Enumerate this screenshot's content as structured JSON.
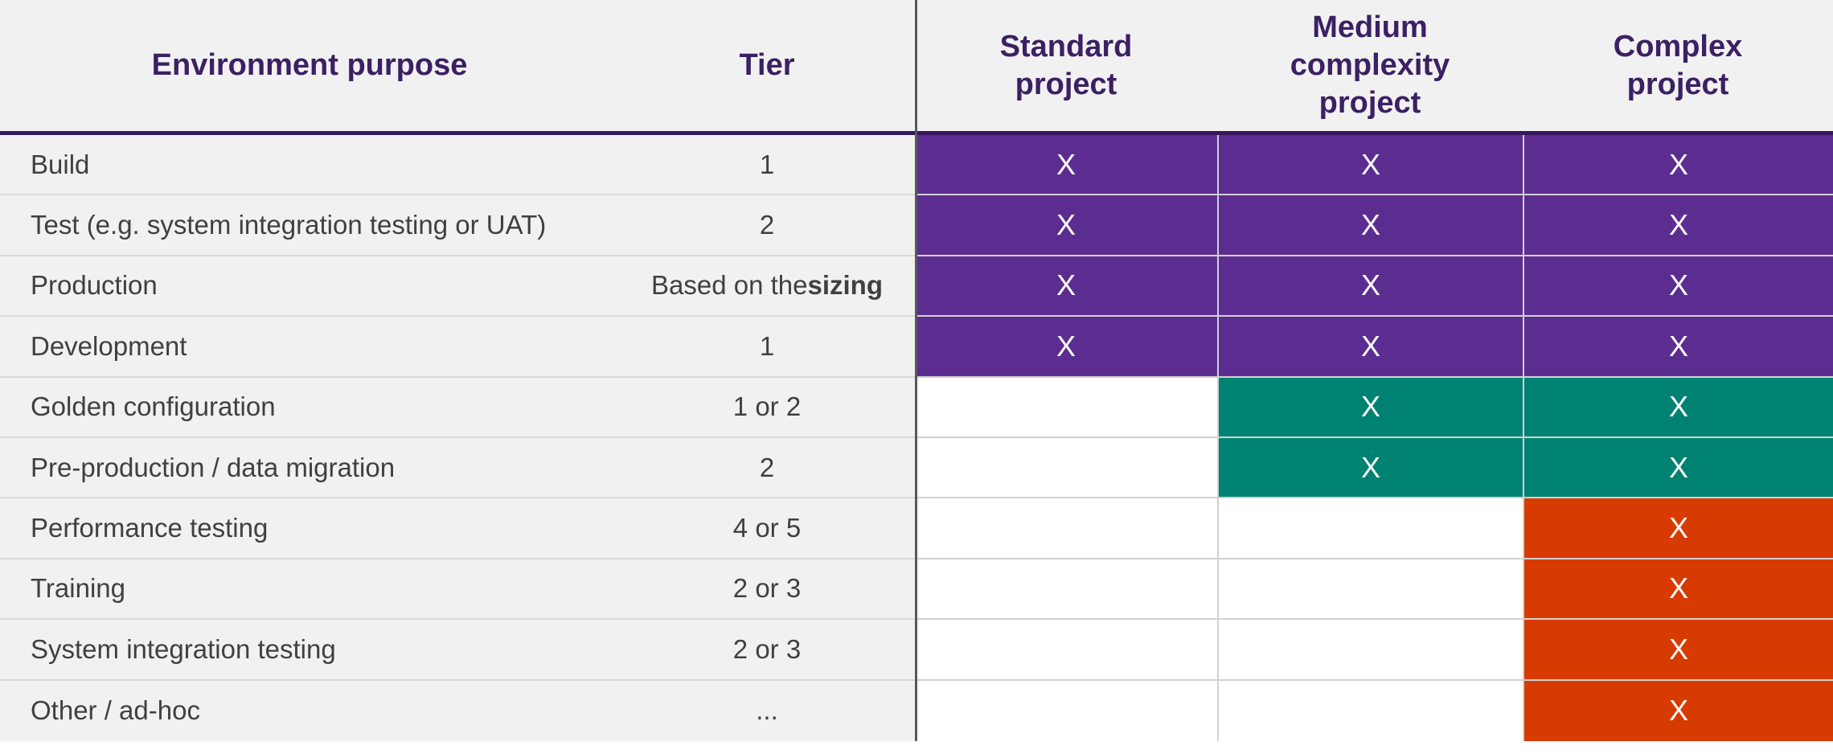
{
  "table": {
    "mark": "X",
    "columns": [
      {
        "id": "purpose",
        "label_lines": [
          "Environment purpose"
        ]
      },
      {
        "id": "tier",
        "label_lines": [
          "Tier"
        ]
      },
      {
        "id": "standard",
        "label_lines": [
          "Standard",
          "project"
        ]
      },
      {
        "id": "medium",
        "label_lines": [
          "Medium",
          "complexity",
          "project"
        ]
      },
      {
        "id": "complex",
        "label_lines": [
          "Complex",
          "project"
        ]
      }
    ],
    "rows": [
      {
        "purpose": "Build",
        "tier": "1",
        "tier_bold": "",
        "cells": [
          "purple",
          "purple",
          "purple"
        ]
      },
      {
        "purpose": "Test (e.g. system integration testing or UAT)",
        "tier": "2",
        "tier_bold": "",
        "cells": [
          "purple",
          "purple",
          "purple"
        ]
      },
      {
        "purpose": "Production",
        "tier": "Based on the ",
        "tier_bold": "sizing",
        "cells": [
          "purple",
          "purple",
          "purple"
        ]
      },
      {
        "purpose": "Development",
        "tier": "1",
        "tier_bold": "",
        "cells": [
          "purple",
          "purple",
          "purple"
        ]
      },
      {
        "purpose": "Golden configuration",
        "tier": "1 or 2",
        "tier_bold": "",
        "cells": [
          "none",
          "teal",
          "teal"
        ]
      },
      {
        "purpose": "Pre-production / data migration",
        "tier": "2",
        "tier_bold": "",
        "cells": [
          "none",
          "teal",
          "teal"
        ]
      },
      {
        "purpose": "Performance testing",
        "tier": "4 or 5",
        "tier_bold": "",
        "cells": [
          "none",
          "none",
          "orange"
        ]
      },
      {
        "purpose": "Training",
        "tier": "2 or 3",
        "tier_bold": "",
        "cells": [
          "none",
          "none",
          "orange"
        ]
      },
      {
        "purpose": "System integration testing",
        "tier": "2 or 3",
        "tier_bold": "",
        "cells": [
          "none",
          "none",
          "orange"
        ]
      },
      {
        "purpose": "Other / ad-hoc",
        "tier": "...",
        "tier_bold": "",
        "cells": [
          "none",
          "none",
          "orange"
        ]
      }
    ],
    "cell_colors": {
      "purple": "#5C2D91",
      "teal": "#008272",
      "orange": "#D83B01",
      "none": "#FFFFFF"
    },
    "theme": {
      "left_bg": "#F1F1F1",
      "left_separator": "#D9D9D9",
      "grid_line": "#D2D2D2",
      "divider": "#595959",
      "header_rule": "#38175E",
      "header_text": "#3B2064",
      "row_text": "#404040",
      "mark_text": "#FFFFFF"
    }
  }
}
